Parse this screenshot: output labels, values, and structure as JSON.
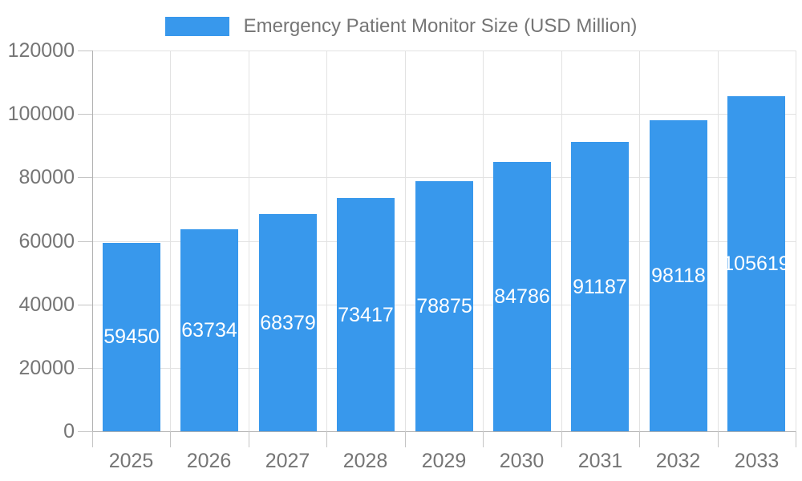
{
  "chart_data": {
    "type": "bar",
    "title": "Emergency Patient Monitor Size (USD Million)",
    "legend_label": "Emergency Patient Monitor Size (USD Million)",
    "legend_position": "top-center",
    "categories": [
      "2025",
      "2026",
      "2027",
      "2028",
      "2029",
      "2030",
      "2031",
      "2032",
      "2033"
    ],
    "series": [
      {
        "name": "Emergency Patient Monitor Size (USD Million)",
        "values": [
          59450,
          63734,
          68379,
          73417,
          78875,
          84786,
          91187,
          98118,
          105619
        ]
      }
    ],
    "values": [
      59450,
      63734,
      68379,
      73417,
      78875,
      84786,
      91187,
      98118,
      105619
    ],
    "value_labels": [
      "59450",
      "63734",
      "68379",
      "73417",
      "78875",
      "84786",
      "91187",
      "98118",
      "105619"
    ],
    "data_label_position": "inside-center",
    "xlabel": "",
    "ylabel": "",
    "ylim": [
      0,
      120000
    ],
    "ytick_interval": 20000,
    "ytick_labels": [
      "0",
      "20000",
      "40000",
      "60000",
      "80000",
      "100000",
      "120000"
    ],
    "grid": true,
    "colors": {
      "bar": "#3898EC",
      "text": "#757575",
      "gridline": "#e2e2e2",
      "axis": "#b0b0b0",
      "tick": "#c4c4c4",
      "data_label": "#ffffff",
      "background": "#ffffff"
    }
  }
}
